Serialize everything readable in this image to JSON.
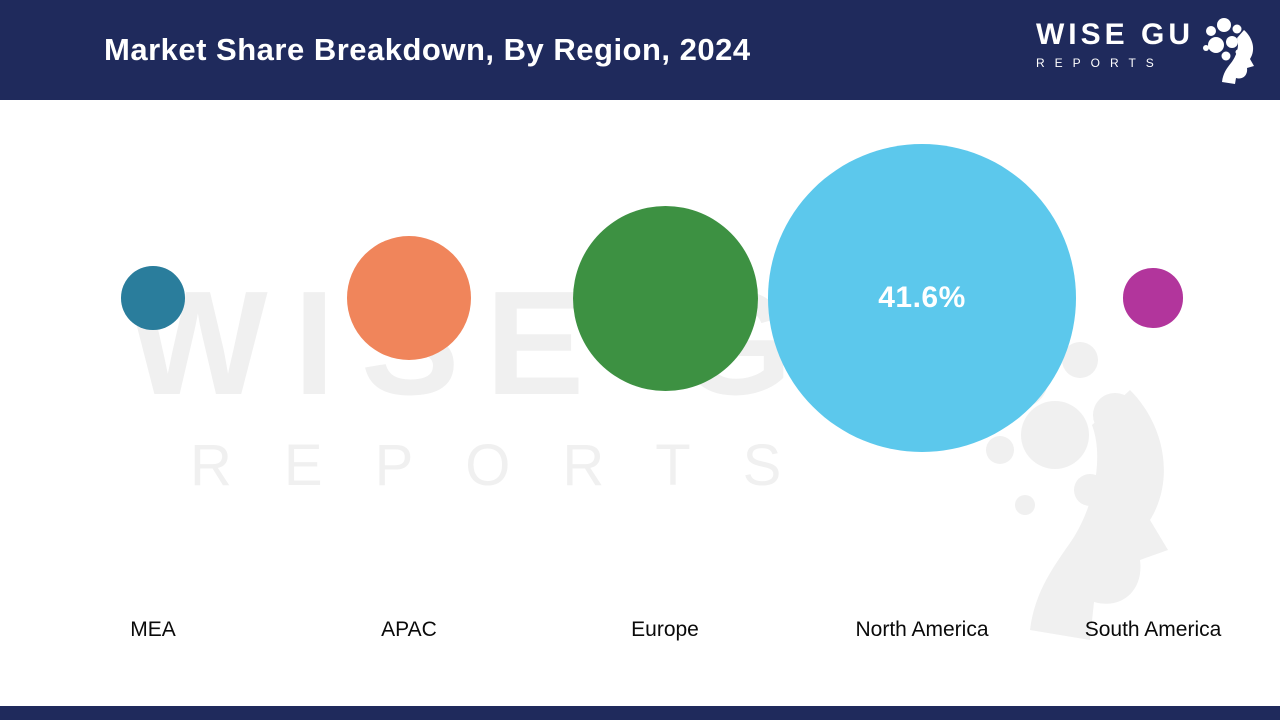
{
  "header": {
    "title": "Market Share Breakdown, By Region, 2024",
    "background_color": "#1f2a5c",
    "logo": {
      "line1": "WISE GU",
      "line2": "REPORTS"
    }
  },
  "watermark": {
    "line1": "WISE GU",
    "line2": "REPORTS"
  },
  "chart_data": {
    "type": "bubble",
    "title": "Market Share Breakdown, By Region, 2024",
    "value_unit": "% market share",
    "legend": "none",
    "axes": "none",
    "sizing": "radius_proportional_to_value",
    "categories": [
      "MEA",
      "APAC",
      "Europe",
      "North America",
      "South America"
    ],
    "series": [
      {
        "label": "MEA",
        "value": 8.6,
        "color": "#2a7d9c",
        "data_label": ""
      },
      {
        "label": "APAC",
        "value": 16.8,
        "color": "#f0855b",
        "data_label": ""
      },
      {
        "label": "Europe",
        "value": 25.0,
        "color": "#3d9142",
        "data_label": ""
      },
      {
        "label": "North America",
        "value": 41.6,
        "color": "#5cc8ec",
        "data_label": "41.6%"
      },
      {
        "label": "South America",
        "value": 8.0,
        "color": "#b2359c",
        "data_label": ""
      }
    ]
  },
  "footer": {
    "background_color": "#1f2a5c"
  }
}
